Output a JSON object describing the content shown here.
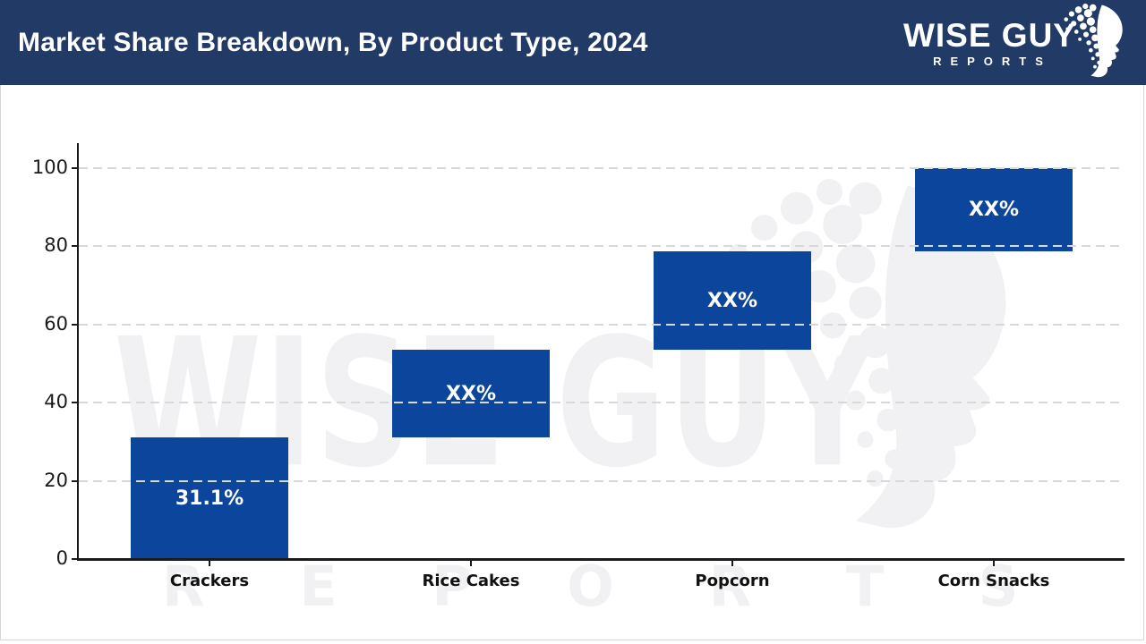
{
  "header": {
    "title": "Market Share Breakdown, By Product Type, 2024",
    "bg_color": "#213a66",
    "logo": {
      "line1": "WISE GUY",
      "line2": "REPORTS"
    }
  },
  "watermark": {
    "line1": "WISE GUY",
    "line2": "R E P O R T S"
  },
  "chart_data": {
    "type": "bar",
    "subtype": "waterfall",
    "title": "Market Share Breakdown, By Product Type, 2024",
    "xlabel": "",
    "ylabel": "",
    "categories": [
      "Crackers",
      "Rice Cakes",
      "Popcorn",
      "Corn Snacks"
    ],
    "segments": [
      {
        "category": "Crackers",
        "start": 0,
        "end": 31.1,
        "value": 31.1,
        "label": "31.1%"
      },
      {
        "category": "Rice Cakes",
        "start": 31.1,
        "end": 53.5,
        "value": 22.4,
        "label": "XX%"
      },
      {
        "category": "Popcorn",
        "start": 53.5,
        "end": 78.7,
        "value": 25.2,
        "label": "XX%"
      },
      {
        "category": "Corn Snacks",
        "start": 78.7,
        "end": 100,
        "value": 21.3,
        "label": "XX%"
      }
    ],
    "yticks": [
      0,
      20,
      40,
      60,
      80,
      100
    ],
    "ylim": [
      0,
      106
    ],
    "grid": "dashed-horizontal",
    "legend": "none",
    "bar_color": "#0b459c",
    "bar_label_color": "#ffffff"
  }
}
